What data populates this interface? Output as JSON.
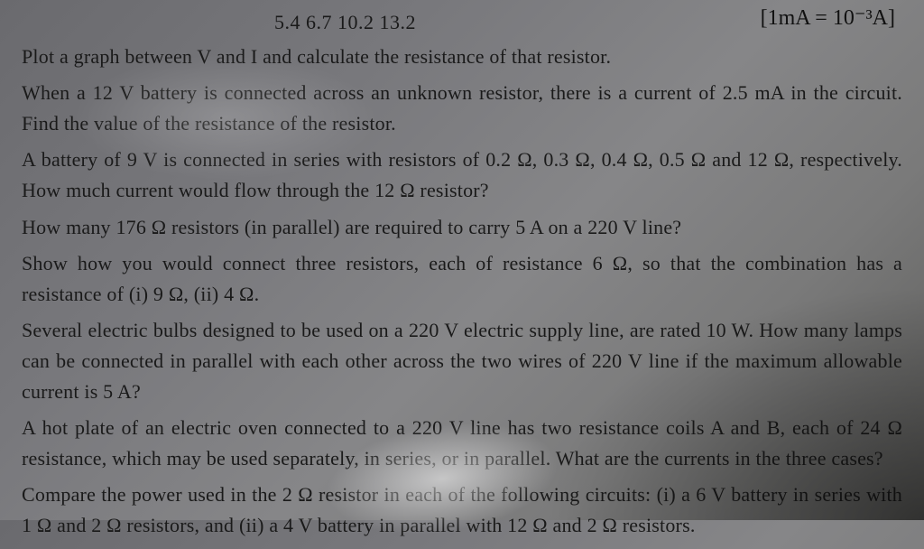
{
  "top_numbers": "5.4      6.7      10.2      13.2",
  "annotation": "[1mA = 10⁻³A]",
  "paragraphs": [
    "Plot a graph between V and I and calculate the resistance of that resistor.",
    "When a 12 V battery is connected across an unknown resistor, there is a current of 2.5 mA in the circuit. Find the value of the resistance of the resistor.",
    "A battery of 9 V is connected in series with resistors of 0.2 Ω, 0.3 Ω, 0.4 Ω, 0.5 Ω and 12 Ω, respectively. How much current would flow through the 12 Ω resistor?",
    "How many 176 Ω resistors (in parallel) are required to carry 5 A on a 220 V line?",
    "Show how you would connect three resistors, each of resistance 6 Ω, so that the combination has a resistance of (i) 9 Ω, (ii) 4 Ω.",
    "Several electric bulbs designed to be used on a 220 V electric supply line, are rated 10 W. How many lamps can be connected in parallel with each other across the two wires of 220 V line if the maximum allowable current is 5 A?",
    "A hot plate of an electric oven connected to a 220 V line has two resistance coils A and B, each of 24 Ω resistance, which may be used separately, in series, or in parallel. What are the currents in the three cases?",
    "Compare the power used in the 2 Ω resistor in each of the following circuits: (i) a 6 V battery in series with 1 Ω and 2 Ω resistors, and (ii) a 4 V battery in parallel with 12 Ω and 2 Ω resistors."
  ]
}
